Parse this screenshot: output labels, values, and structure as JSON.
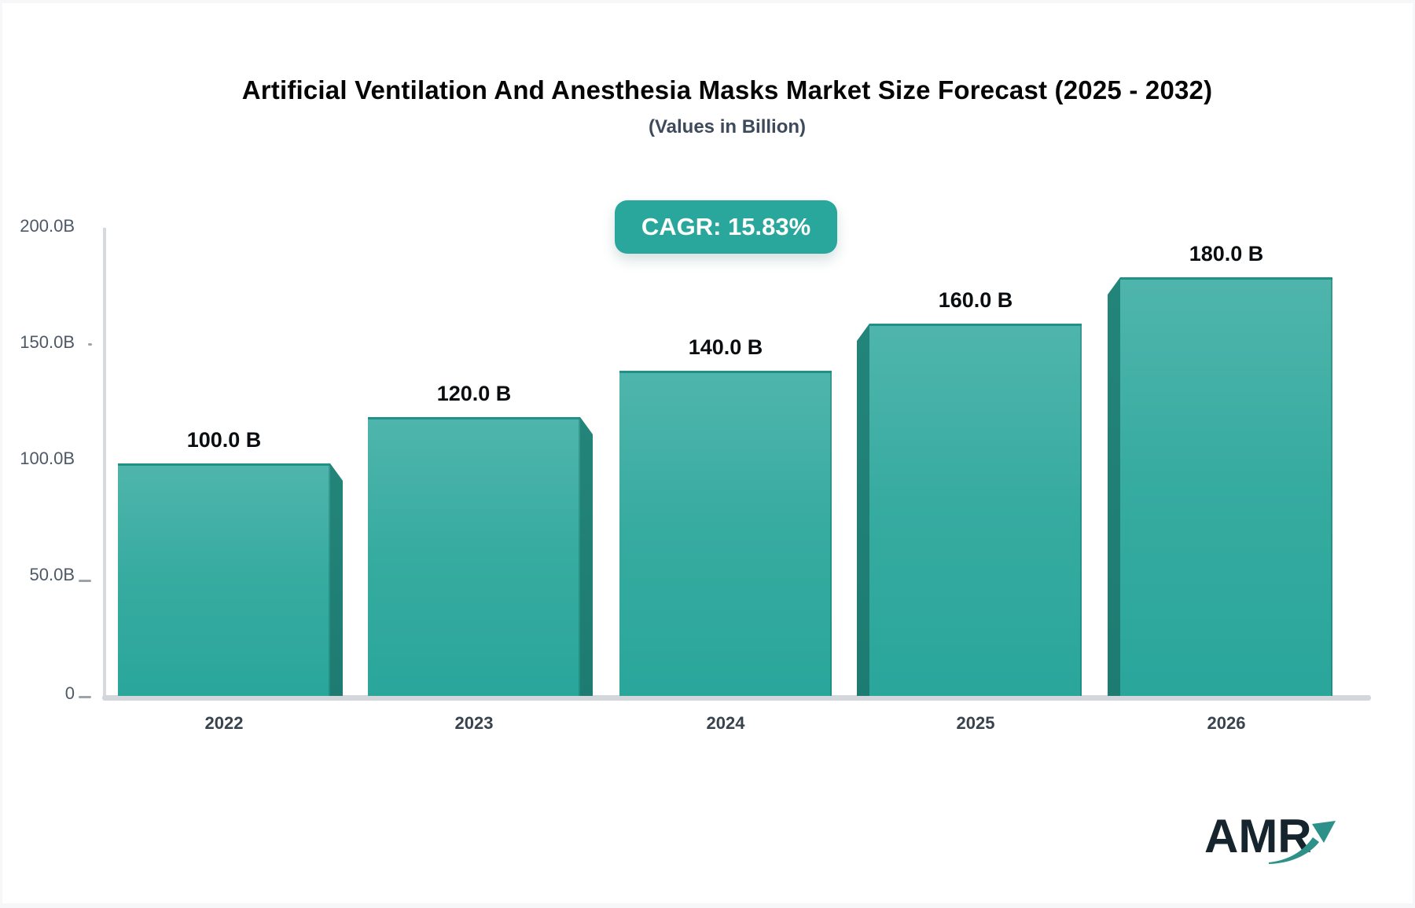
{
  "page": {
    "title": "Artificial Ventilation And Anesthesia Masks Market Size Forecast (2025 - 2032)",
    "subtitle": "(Values in Billion)",
    "cagr_badge_label": "CAGR: 15.83%",
    "logo_text": "AMR",
    "colors": {
      "accent_teal": "#2aa69b",
      "bar_side_teal": "#1f7e74",
      "badge_bg": "#2aa79c",
      "axis_gray": "#d4d8dc",
      "title_text": "#060606",
      "subtitle_text": "#3d4a5c",
      "tick_text": "#4e5968",
      "logo_text": "#16242d",
      "logo_arrow": "#2e9189"
    }
  },
  "chart_data": {
    "type": "bar",
    "title": "Artificial Ventilation And Anesthesia Masks Market Size Forecast (2025 - 2032)",
    "subtitle": "(Values in Billion)",
    "cagr": "15.83%",
    "categories": [
      "2022",
      "2023",
      "2024",
      "2025",
      "2026"
    ],
    "values": [
      100,
      120,
      140,
      160,
      180
    ],
    "value_labels": [
      "100.0 B",
      "120.0 B",
      "140.0 B",
      "160.0 B",
      "180.0 B"
    ],
    "unit": "Billion",
    "xlabel": "",
    "ylabel": "",
    "ylim": [
      0,
      200
    ],
    "y_ticks": [
      "200.0B",
      "150.0B",
      "100.0B",
      "50.0B",
      "0"
    ],
    "grid": false,
    "legend": "none",
    "bar_color": "#2aa69b",
    "bar_3d_sides": [
      "right",
      "right",
      "none",
      "left",
      "left"
    ]
  }
}
